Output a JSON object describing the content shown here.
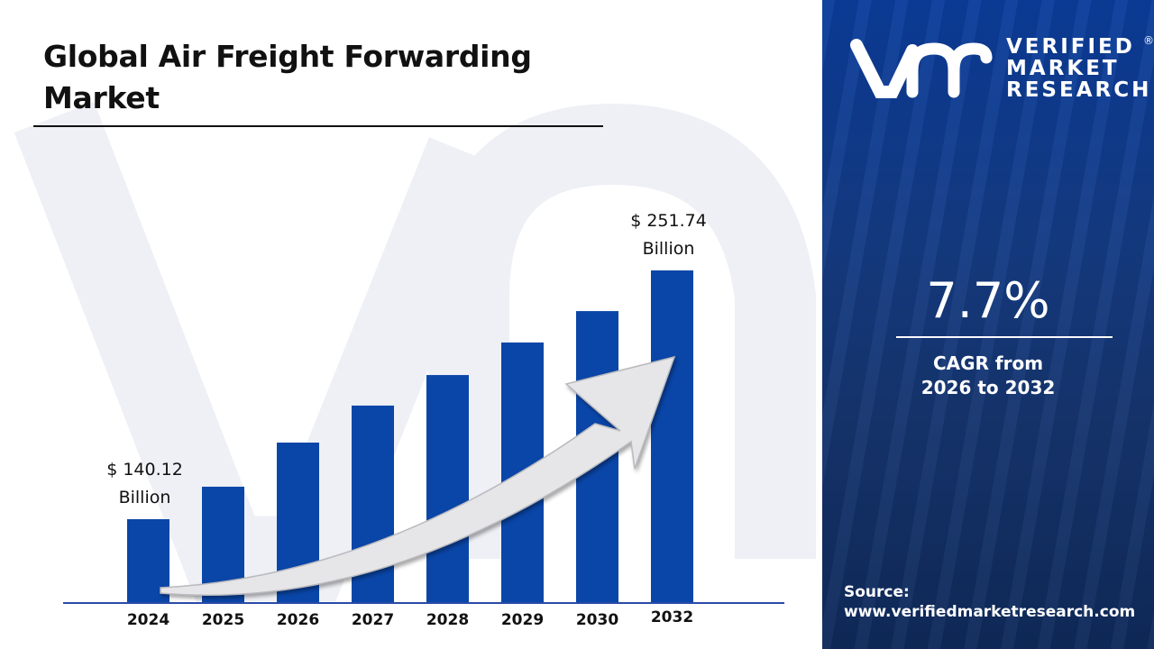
{
  "title": "Global Air Freight Forwarding Market",
  "brand": {
    "line1": "VERIFIED",
    "line2": "MARKET",
    "line3": "RESEARCH",
    "registered": "®"
  },
  "cagr": {
    "value": "7.7%",
    "label_line1": "CAGR from",
    "label_line2": "2026 to 2032"
  },
  "source": {
    "label": "Source:",
    "url": "www.verifiedmarketresearch.com"
  },
  "colors": {
    "bar": "#0a46a8",
    "panel": "#123d8a",
    "arrow": "#e6e6e8",
    "watermark": "#eef0f6"
  },
  "chart_data": {
    "type": "bar",
    "categories": [
      "2024",
      "2025",
      "2026",
      "2027",
      "2028",
      "2029",
      "2030",
      "2032"
    ],
    "values": [
      140.12,
      154.7,
      174.5,
      191.1,
      204.8,
      219.4,
      233.5,
      251.74
    ],
    "annotations": [
      {
        "category": "2024",
        "line1": "$ 140.12",
        "line2": "Billion"
      },
      {
        "category": "2032",
        "line1": "$ 251.74",
        "line2": "Billion"
      }
    ],
    "xlabel": "",
    "ylabel": "",
    "grid": false,
    "legend": "none",
    "trend_arrow": "up"
  }
}
